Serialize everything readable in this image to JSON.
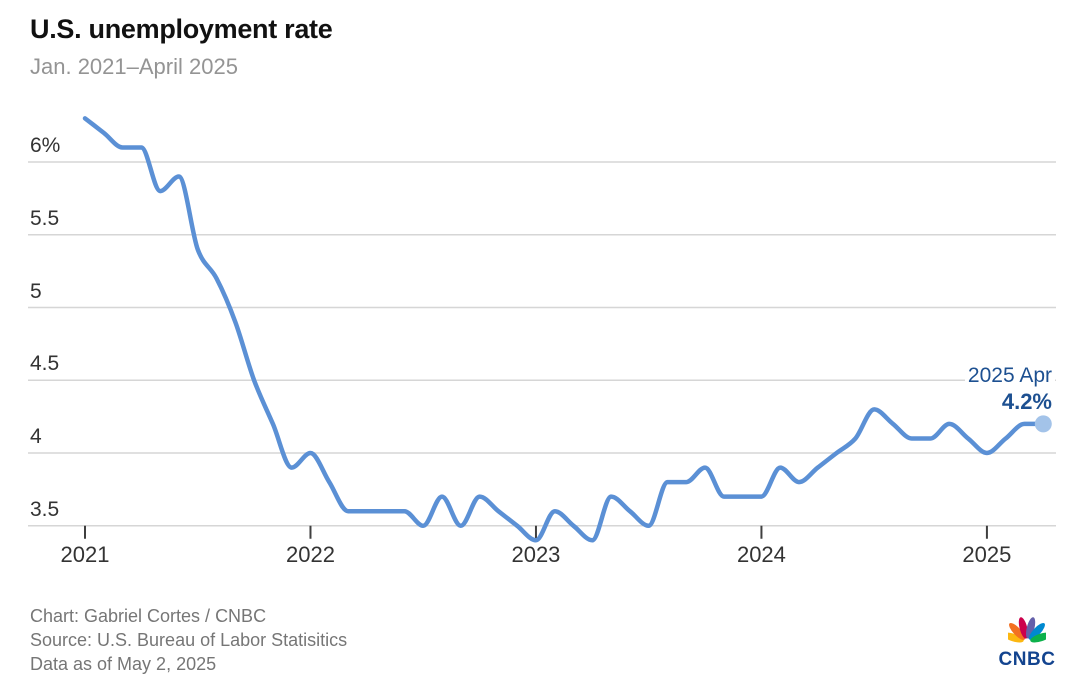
{
  "header": {
    "title": "U.S. unemployment rate",
    "subtitle": "Jan. 2021–April 2025"
  },
  "chart_data": {
    "type": "line",
    "title": "U.S. unemployment rate",
    "subtitle": "Jan. 2021–April 2025",
    "unit": "percent",
    "x_start": "2021-01",
    "x_end": "2025-04",
    "grid": true,
    "legend": false,
    "ylim": [
      3.3,
      6.45
    ],
    "y_ticks": [
      {
        "value": 6.0,
        "label": "6%"
      },
      {
        "value": 5.5,
        "label": "5.5"
      },
      {
        "value": 5.0,
        "label": "5"
      },
      {
        "value": 4.5,
        "label": "4.5"
      },
      {
        "value": 4.0,
        "label": "4"
      },
      {
        "value": 3.5,
        "label": "3.5"
      }
    ],
    "x_ticks": [
      {
        "month_index": 0,
        "label": "2021"
      },
      {
        "month_index": 12,
        "label": "2022"
      },
      {
        "month_index": 24,
        "label": "2023"
      },
      {
        "month_index": 36,
        "label": "2024"
      },
      {
        "month_index": 48,
        "label": "2025"
      }
    ],
    "series": [
      {
        "name": "U.S. unemployment rate",
        "monthly_values": [
          6.3,
          6.2,
          6.1,
          6.1,
          5.8,
          5.9,
          5.4,
          5.2,
          4.9,
          4.5,
          4.2,
          3.9,
          4.0,
          3.8,
          3.6,
          3.6,
          3.6,
          3.6,
          3.5,
          3.7,
          3.5,
          3.7,
          3.6,
          3.5,
          3.4,
          3.6,
          3.5,
          3.4,
          3.7,
          3.6,
          3.5,
          3.8,
          3.8,
          3.9,
          3.7,
          3.7,
          3.7,
          3.9,
          3.8,
          3.9,
          4.0,
          4.1,
          4.3,
          4.2,
          4.1,
          4.1,
          4.2,
          4.1,
          4.0,
          4.1,
          4.2,
          4.2
        ]
      }
    ],
    "annotation": {
      "label": "2025 Apr",
      "value": "4.2%"
    },
    "colors": {
      "line": "#5b90d5",
      "end_dot": "#a3c3e9",
      "annotation_text": "#1d5091",
      "grid": "#d6d6d6",
      "tick": "#3f3f3f",
      "axis_label": "#333333"
    }
  },
  "footer": {
    "credit": "Chart: Gabriel Cortes / CNBC",
    "source": "Source: U.S. Bureau of Labor Statisitics",
    "data_as_of": "Data as of May 2, 2025"
  },
  "logo": {
    "wordmark": "CNBC",
    "navy": "#13448f",
    "peacock_colors": [
      "#FCB711",
      "#F37021",
      "#CC004C",
      "#6460AA",
      "#0089D0",
      "#0DB14B"
    ]
  }
}
